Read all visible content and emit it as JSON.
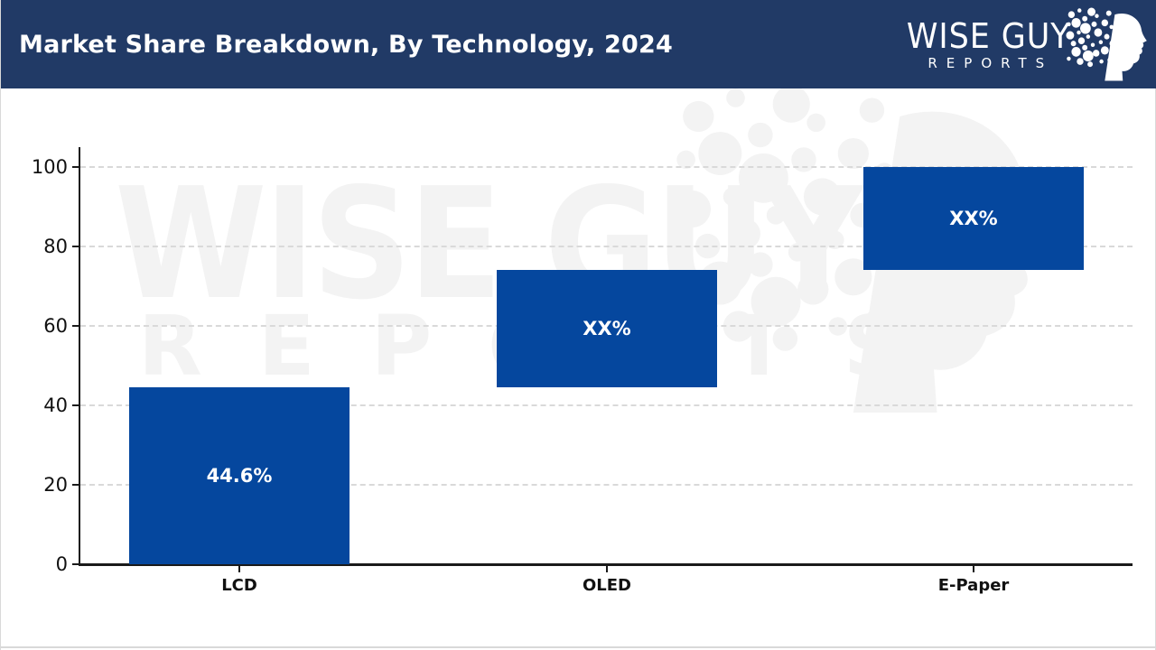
{
  "header": {
    "title": "Market Share Breakdown, By Technology, 2024",
    "logo": {
      "name": "WISE GUY",
      "tagline": "REPORTS"
    }
  },
  "watermark": {
    "name": "WISE GUY",
    "tagline": "REPORTS"
  },
  "chart_data": {
    "type": "bar",
    "subtype": "floating-waterfall",
    "title": "Market Share Breakdown, By Technology, 2024",
    "categories": [
      "LCD",
      "OLED",
      "E-Paper"
    ],
    "bars": [
      {
        "category": "LCD",
        "start": 0,
        "end": 44.6,
        "label": "44.6%"
      },
      {
        "category": "OLED",
        "start": 44.6,
        "end": 74.1,
        "label": "XX%"
      },
      {
        "category": "E-Paper",
        "start": 74.1,
        "end": 100,
        "label": "XX%"
      }
    ],
    "ylim": [
      0,
      100
    ],
    "yticks": [
      0,
      20,
      40,
      60,
      80,
      100
    ],
    "grid": "horizontal-dashed",
    "legend": "none",
    "bar_color": "#05479E",
    "bar_label_color": "#FFFFFF"
  },
  "colors": {
    "header_bg": "#213A66",
    "axis": "#1A1A1A",
    "gridline": "#D9D9D9",
    "watermark": "#F3F3F3"
  }
}
